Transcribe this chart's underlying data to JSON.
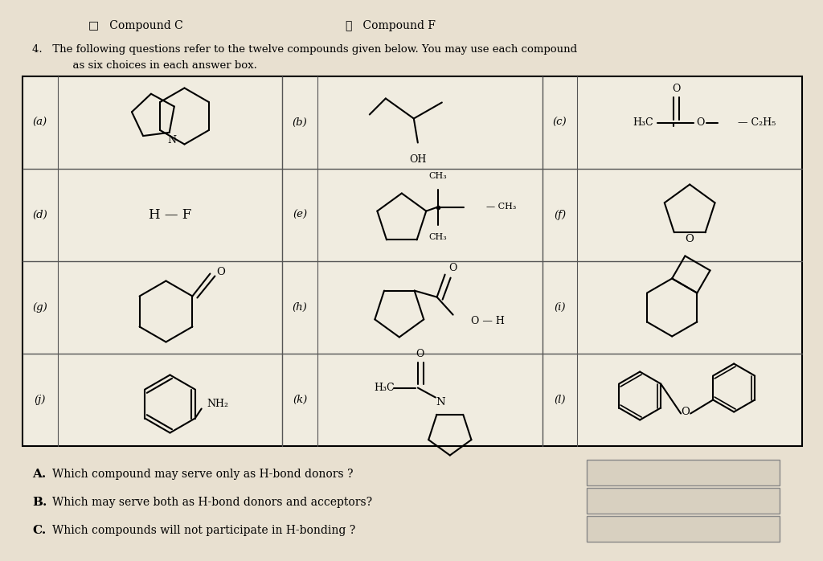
{
  "bg_color": "#e8e0d0",
  "table_bg": "#d8d0c0",
  "cell_bg": "#e0d8c8",
  "white_cell": "#f0ece0",
  "header_text1": "□   Compound C",
  "header_text2": "⧄   Compound F",
  "question4": "4.   The following questions refer to the twelve compounds given below. You may use each compound",
  "question4b": "      as six choices in each answer box.",
  "cell_labels": [
    "(a)",
    "(b)",
    "(c)",
    "(d)",
    "(e)",
    "(f)",
    "(g)",
    "(h)",
    "(i)",
    "(j)",
    "(k)",
    "(l)"
  ],
  "questions": [
    [
      "A.",
      "Which compound may serve only as H-bond donors ?"
    ],
    [
      "B.",
      "Which may serve both as H-bond donors and acceptors?"
    ],
    [
      "C.",
      "Which compounds will not participate in H-bonding ?"
    ]
  ],
  "font_size_label": 9,
  "font_size_text": 10,
  "font_size_chem": 8.5,
  "answer_box_color": "#d8d0c0"
}
